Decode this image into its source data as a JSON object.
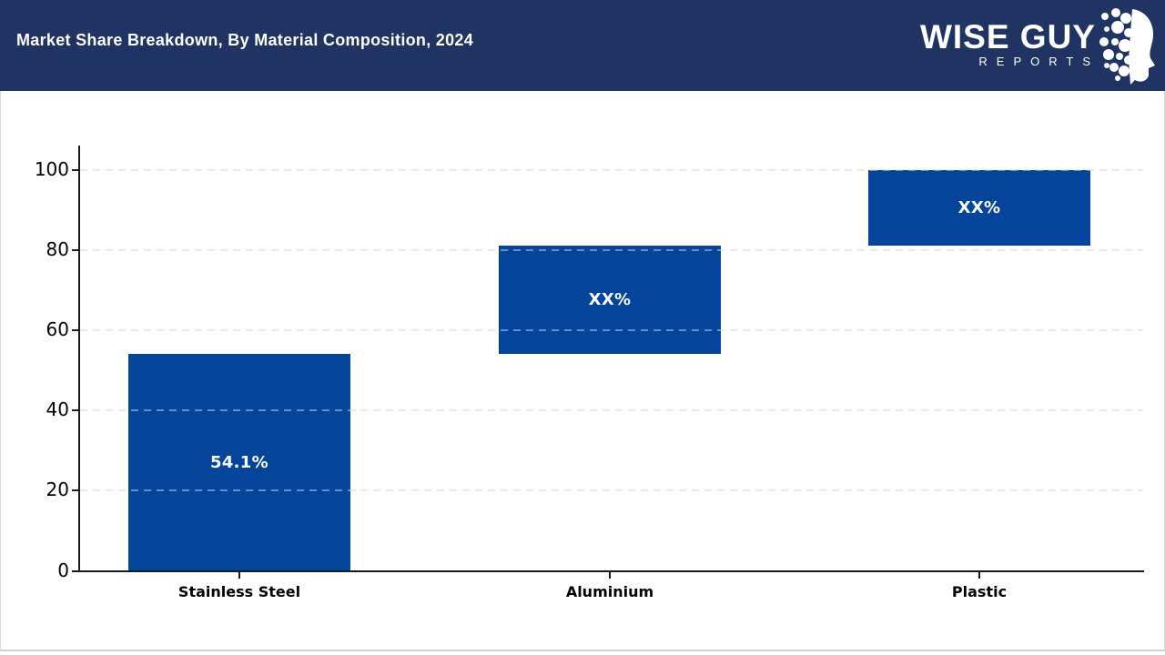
{
  "header": {
    "title": "Market Share Breakdown, By Material Composition, 2024",
    "bg_color": "#1f3462",
    "brand": {
      "line1": "WISE GUY",
      "line2": "REPORTS"
    }
  },
  "watermark": {
    "line1": "WISE GUY",
    "line2": "REPORTS"
  },
  "chart_data": {
    "type": "bar",
    "variant": "floating-waterfall",
    "title": "Market Share Breakdown, By Material Composition, 2024",
    "categories": [
      "Stainless Steel",
      "Aluminium",
      "Plastic"
    ],
    "bars": [
      {
        "category": "Stainless Steel",
        "start": 0,
        "end": 54.1,
        "label": "54.1%"
      },
      {
        "category": "Aluminium",
        "start": 54.1,
        "end": 81,
        "label": "XX%"
      },
      {
        "category": "Plastic",
        "start": 81,
        "end": 100,
        "label": "XX%"
      }
    ],
    "xlabel": "",
    "ylabel": "",
    "ylim": [
      0,
      100
    ],
    "yticks": [
      0,
      20,
      40,
      60,
      80,
      100
    ],
    "grid": "dashed horizontal gridlines at y ticks",
    "legend": "none",
    "bar_color": "#04459b",
    "bar_label_color": "#ffffff",
    "axis_color": "#1a1a1a"
  }
}
